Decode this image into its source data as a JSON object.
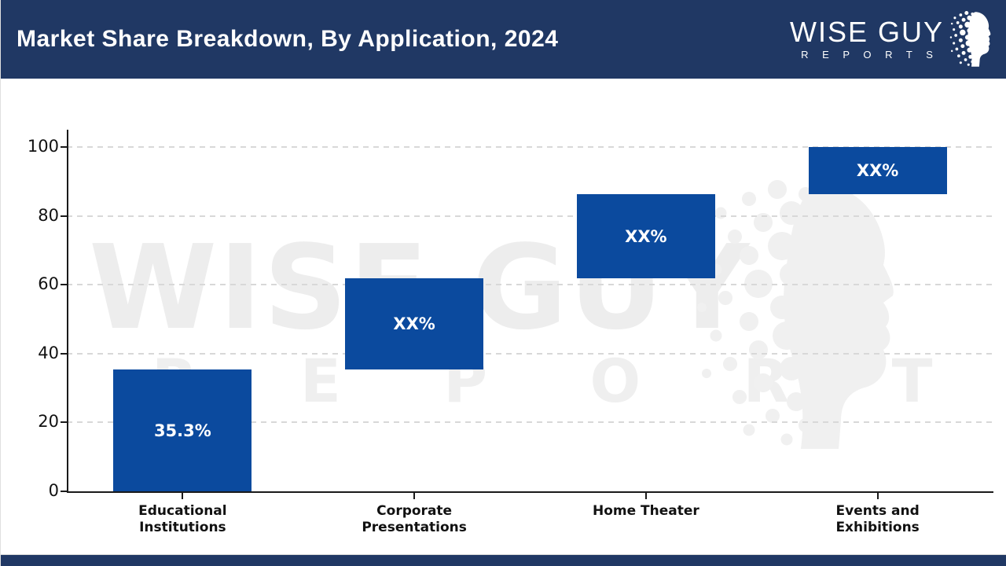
{
  "header": {
    "title": "Market Share Breakdown, By Application, 2024",
    "brand": {
      "name": "WISE GUY",
      "sub": "R E P O R T S"
    }
  },
  "watermark": {
    "name": "WISE GUY",
    "sub": "R E P O R T S"
  },
  "colors": {
    "header_bg": "#203864",
    "bar": "#0b4a9e",
    "bar_label": "#ffffff",
    "grid": "#d8d8d8",
    "axis": "#1a1a1a",
    "tick_label": "#111111",
    "watermark": "#ededed"
  },
  "chart_data": {
    "type": "bar",
    "variant": "waterfall",
    "title": "Market Share Breakdown, By Application, 2024",
    "categories": [
      "Educational Institutions",
      "Corporate Presentations",
      "Home Theater",
      "Events and Exhibitions"
    ],
    "series": [
      {
        "name": "Market share (%)",
        "points": [
          {
            "category": "Educational Institutions",
            "start": 0,
            "end": 35.3,
            "label": "35.3%"
          },
          {
            "category": "Corporate Presentations",
            "start": 35.3,
            "end": 61.8,
            "label": "XX%"
          },
          {
            "category": "Home Theater",
            "start": 61.8,
            "end": 86.2,
            "label": "XX%"
          },
          {
            "category": "Events and Exhibitions",
            "start": 86.2,
            "end": 100,
            "label": "XX%"
          }
        ]
      }
    ],
    "xlabel": "",
    "ylabel": "",
    "ylim": [
      0,
      100
    ],
    "yticks": [
      0,
      20,
      40,
      60,
      80,
      100
    ],
    "grid": "horizontal-dashed",
    "legend": "none"
  }
}
